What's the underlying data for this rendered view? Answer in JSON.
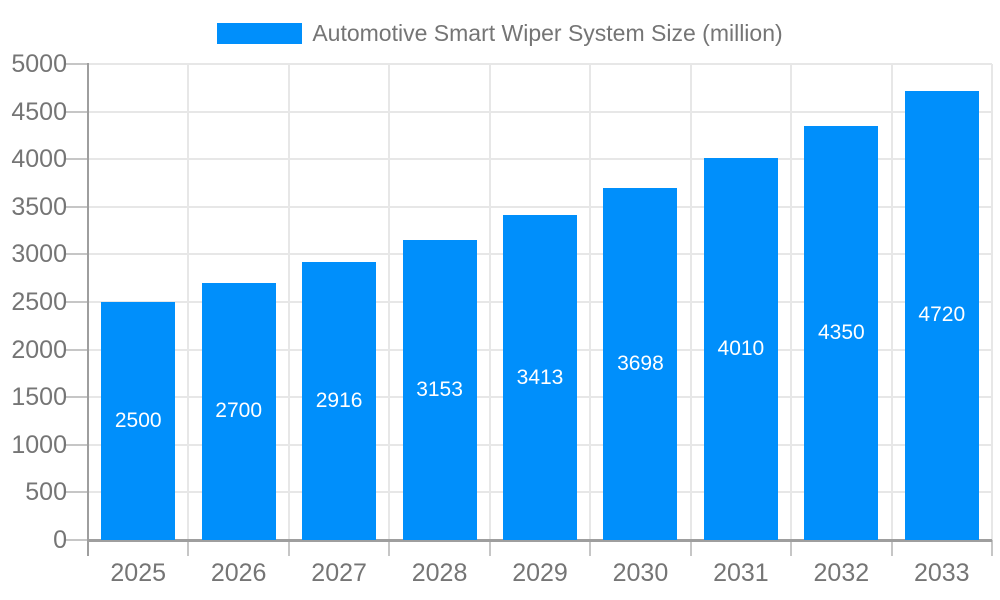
{
  "legend": {
    "label": "Automotive Smart Wiper System Size (million)"
  },
  "colors": {
    "bar": "#008FFB",
    "grid": "#e7e7e7",
    "tick": "#c6c6c6",
    "axis": "#9e9e9e",
    "label": "#757575",
    "value_label": "#ffffff"
  },
  "chart_data": {
    "type": "bar",
    "title": "Automotive Smart Wiper System Size (million)",
    "series_name": "Automotive Smart Wiper System Size (million)",
    "categories": [
      "2025",
      "2026",
      "2027",
      "2028",
      "2029",
      "2030",
      "2031",
      "2032",
      "2033"
    ],
    "values": [
      2500,
      2700,
      2916,
      3153,
      3413,
      3698,
      4010,
      4350,
      4720
    ],
    "xlabel": "",
    "ylabel": "",
    "ylim": [
      0,
      5000
    ],
    "ytick_step": 500,
    "ytick_labels": [
      "0",
      "500",
      "1000",
      "1500",
      "2000",
      "2500",
      "3000",
      "3500",
      "4000",
      "4500",
      "5000"
    ],
    "grid": true,
    "legend_position": "top",
    "bar_label_position": "inside-center",
    "bar_label_color": "#ffffff"
  }
}
